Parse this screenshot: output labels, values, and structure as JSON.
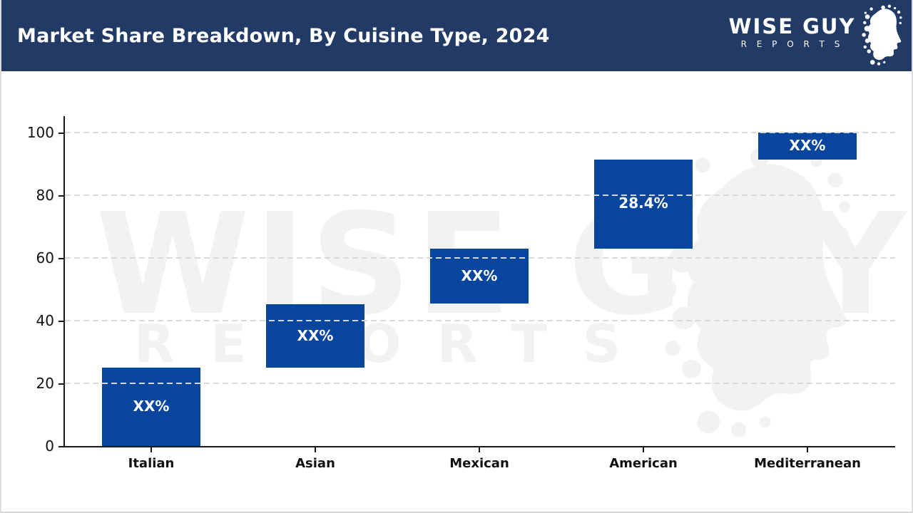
{
  "header": {
    "title": "Market Share Breakdown, By Cuisine Type, 2024",
    "logo": {
      "line1": "WISE GUY",
      "line2": "R E P O R T S"
    }
  },
  "watermark": {
    "line1": "WISE GUY",
    "line2": "REPORTS"
  },
  "colors": {
    "header_bg": "#213a66",
    "bar_fill": "#08459c",
    "bar_label": "#ffffff",
    "gridline": "#d9d9d9",
    "axis": "#1a1a1a",
    "watermark": "#f2f2f2"
  },
  "chart_data": {
    "type": "bar",
    "subtype": "waterfall",
    "title": "Market Share Breakdown, By Cuisine Type, 2024",
    "categories": [
      "Italian",
      "Asian",
      "Mexican",
      "American",
      "Mediterranean"
    ],
    "segments": [
      {
        "category": "Italian",
        "start": 0,
        "end": 25,
        "value_label": "XX%"
      },
      {
        "category": "Asian",
        "start": 25,
        "end": 45.2,
        "value_label": "XX%"
      },
      {
        "category": "Mexican",
        "start": 45.5,
        "end": 62.9,
        "value_label": "XX%"
      },
      {
        "category": "American",
        "start": 63,
        "end": 91.4,
        "value_label": "28.4%"
      },
      {
        "category": "Mediterranean",
        "start": 91.4,
        "end": 100,
        "value_label": "XX%"
      }
    ],
    "xlabel": "",
    "ylabel": "",
    "ylim": [
      0,
      105
    ],
    "yticks": [
      0,
      20,
      40,
      60,
      80,
      100
    ],
    "grid": "horizontal-dashed",
    "legend": "none"
  }
}
